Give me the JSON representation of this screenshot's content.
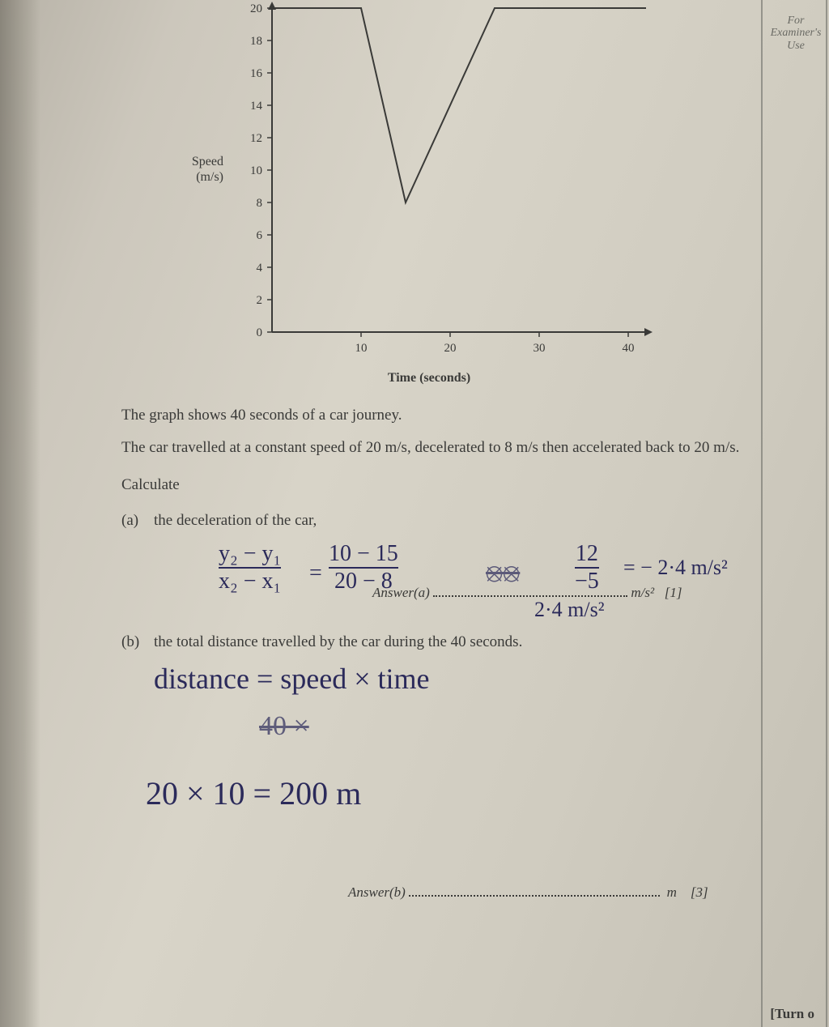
{
  "margin_note": {
    "line1": "For",
    "line2": "Examiner's",
    "line3": "Use"
  },
  "chart": {
    "type": "line",
    "ylabel_line1": "Speed",
    "ylabel_line2": "(m/s)",
    "xlabel": "Time (seconds)",
    "y_ticks": [
      0,
      2,
      4,
      6,
      8,
      10,
      12,
      14,
      16,
      18,
      20
    ],
    "x_ticks": [
      10,
      20,
      30,
      40
    ],
    "xlim": [
      0,
      40
    ],
    "ylim": [
      0,
      20
    ],
    "axis_color": "#3a3a38",
    "line_color": "#3a3a38",
    "line_width": 2,
    "background_color": "transparent",
    "points": [
      [
        0,
        20
      ],
      [
        10,
        20
      ],
      [
        15,
        8
      ],
      [
        25,
        20
      ],
      [
        42,
        20
      ]
    ]
  },
  "q": {
    "intro1": "The graph shows 40 seconds of a car journey.",
    "intro2": "The car travelled at a constant speed of 20 m/s, decelerated to 8 m/s then accelerated back to 20 m/s.",
    "calc": "Calculate",
    "a_label": "(a)",
    "a_text": "the deceleration of the car,",
    "a_answer_label": "Answer(a)",
    "a_unit": "m/s²",
    "a_marks": "[1]",
    "b_label": "(b)",
    "b_text": "the total distance travelled by the car during the 40 seconds.",
    "b_answer_label": "Answer(b)",
    "b_unit": "m",
    "b_marks": "[3]"
  },
  "hand": {
    "frac_top": "y₂ − y₁",
    "frac_bot": "x₂ − x₁",
    "eq1": "=",
    "rhs_top": "10 − 15",
    "rhs_bot": "20 − 8",
    "scribble": "⦻⦻",
    "frac2_top": "12",
    "frac2_bot": "−5",
    "result": "= − 2·4 m/s²",
    "note": "2·4 m/s²",
    "b_line1": "distance = speed × time",
    "b_cross": "40 ×",
    "b_line2": "20 × 10 = 200 m"
  },
  "turn": "[Turn o"
}
